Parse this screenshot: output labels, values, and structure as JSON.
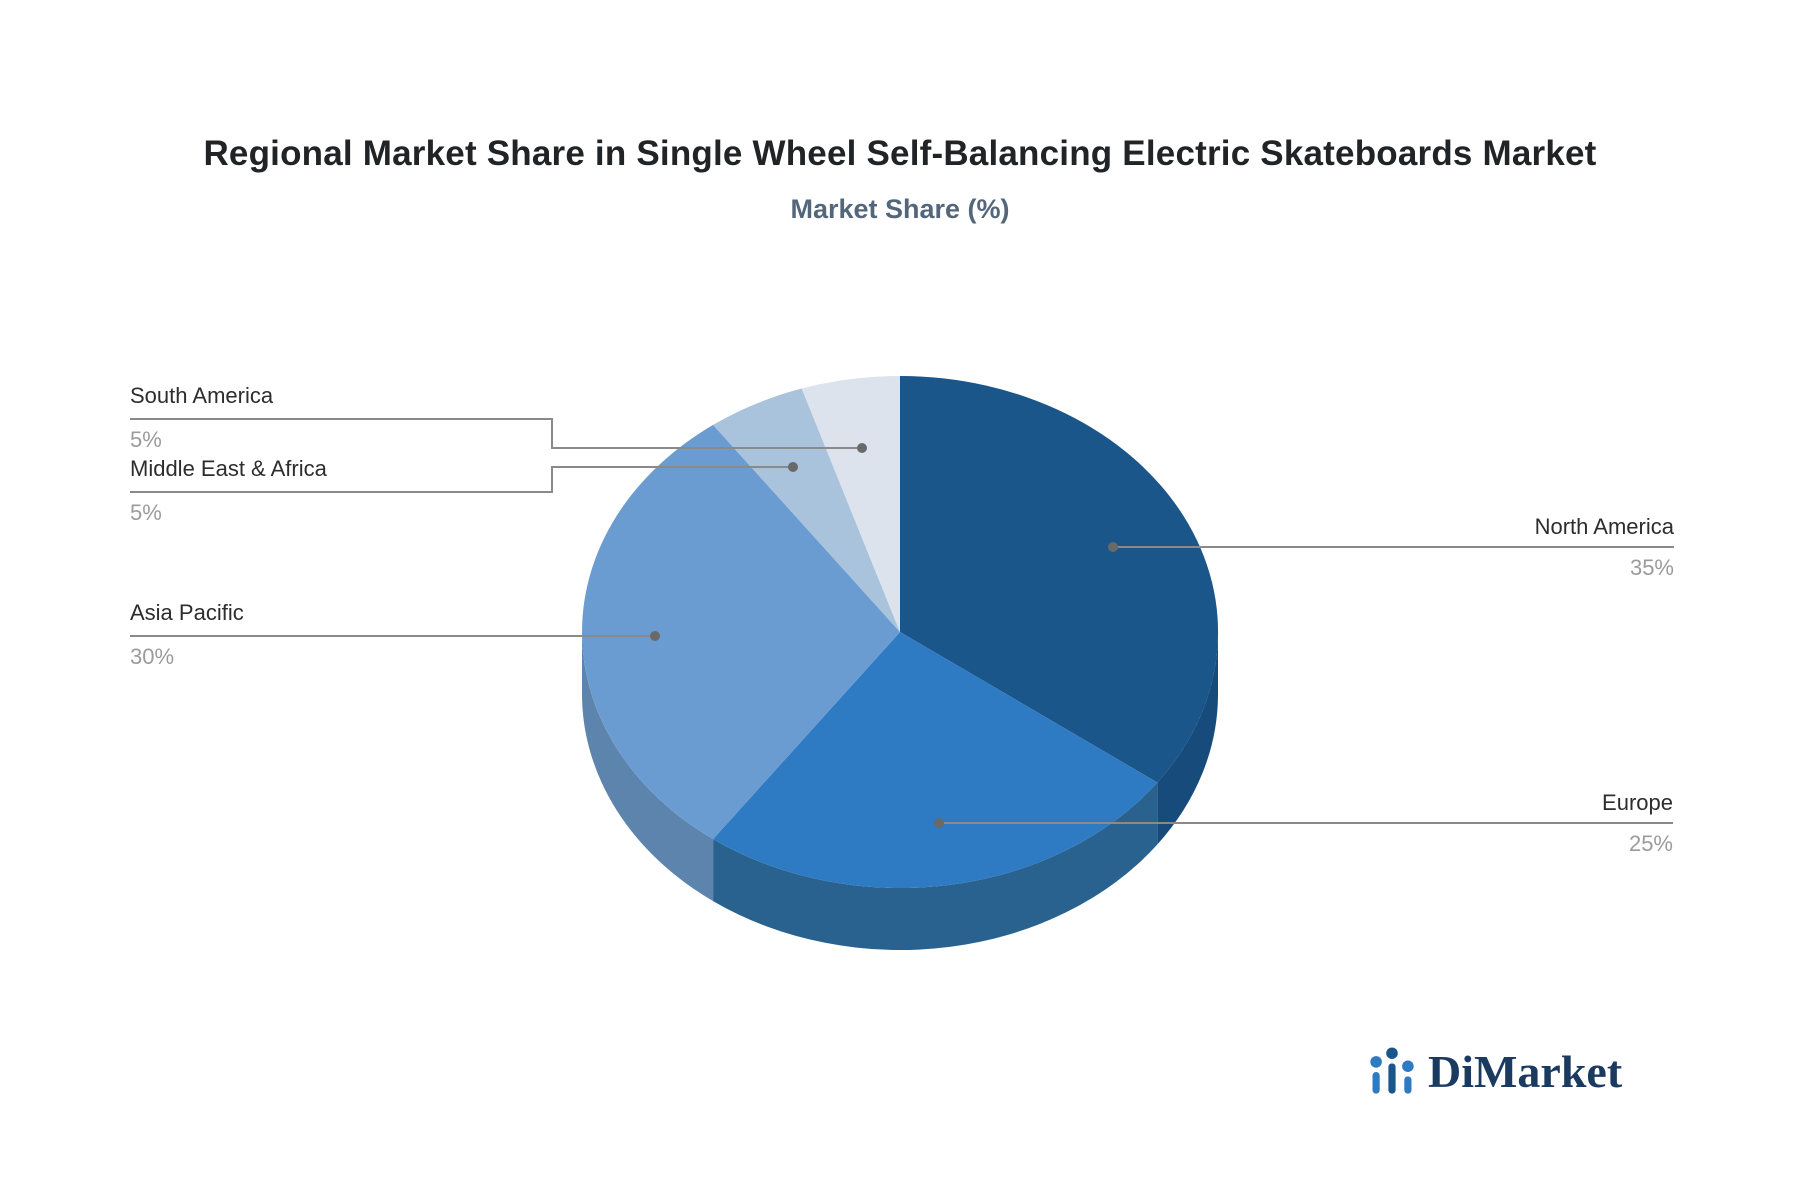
{
  "title": "Regional Market Share in Single Wheel Self-Balancing Electric Skateboards Market",
  "subtitle": "Market Share (%)",
  "logo": {
    "text": "DiMarket"
  },
  "chart_data": {
    "type": "pie",
    "title": "Regional Market Share in Single Wheel Self-Balancing Electric Skateboards Market",
    "subtitle": "Market Share (%)",
    "unit": "%",
    "effect": "3d",
    "start_angle_deg": 0,
    "direction": "clockwise",
    "legend_position": "callout-labels",
    "series": [
      {
        "name": "North America",
        "value": 35,
        "display": "35%",
        "color": "#1B568A",
        "side_color": "#174B7C"
      },
      {
        "name": "Europe",
        "value": 25,
        "display": "25%",
        "color": "#2E7BC3",
        "side_color": "#2A628F"
      },
      {
        "name": "Asia Pacific",
        "value": 30,
        "display": "30%",
        "color": "#6B9CD1",
        "side_color": "#5C84AC"
      },
      {
        "name": "Middle East & Africa",
        "value": 5,
        "display": "5%",
        "color": "#A9C3DD",
        "side_color": "#8FA9C2"
      },
      {
        "name": "South America",
        "value": 5,
        "display": "5%",
        "color": "#DCE3ED",
        "side_color": "#BCC5D2"
      }
    ]
  }
}
